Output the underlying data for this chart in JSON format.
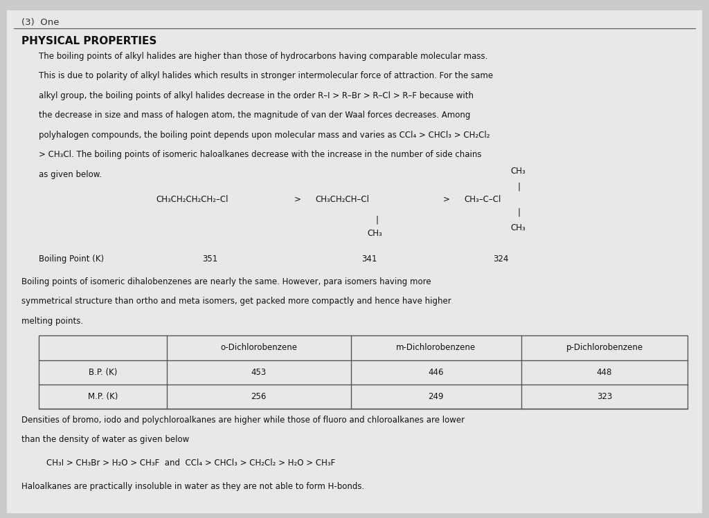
{
  "background_color": "#d8d8d8",
  "page_bg": "#e8e8e8",
  "title": "PHYSICAL PROPERTIES",
  "para1": "The boiling points of alkyl halides are higher than those of hydrocarbons having comparable molecular mass.\nThis is due to polarity of alkyl halides which results in stronger intermolecular force of attraction. For the same\nalkyl group, the boiling points of alkyl halides decrease in the order R–I > R–Br > R–Cl > R–F because with\nthe decrease in size and mass of halogen atom, the magnitude of van der Waal forces decreases. Among\npolyhalogen compounds, the boiling point depends upon molecular mass and varies as CCl₄ > CHCl₃ > CH₂Cl₂\n> CH₃Cl. The boiling points of isomeric haloalkanes decrease with the increase in the number of side chains\nas given below.",
  "header_num": "(3)  One",
  "table_headers": [
    "",
    "o-Dichlorobenzene",
    "m-Dichlorobenzene",
    "p-Dichlorobenzene"
  ],
  "table_row1": [
    "B.P. (K)",
    "453",
    "446",
    "448"
  ],
  "table_row2": [
    "M.P. (K)",
    "256",
    "249",
    "323"
  ],
  "para2": "Boiling points of isomeric dihalobenzenes are nearly the same. However, para isomers having more\nsymmetrical structure than ortho and meta isomers, get packed more compactly and hence have higher\nmelting points.",
  "para3": "Densities of bromo, iodo and polychloroalkanes are higher while those of fluoro and chloroalkanes are lower\nthan the density of water as given below",
  "density_line": "CH₃I > CH₃Br > H₂O > CH₃F  and  CCl₄ > CHCl₃ > CH₂Cl₂ > H₂O > CH₃F",
  "last_line": "Haloalkanes are practically insoluble in water as they are not able to form H-bonds.",
  "bp_label": "Boiling Point (K)",
  "bp_values": [
    "351",
    "341",
    "324"
  ],
  "struct1_main": "CH₃CH₂CH₂CH₂–Cl",
  "struct2_main": "CH₃CH₂CH–Cl",
  "struct2_sub": "CH₃",
  "struct3_main": "CH₃–C–Cl",
  "struct3_top": "CH₃",
  "struct3_bot": "CH₃",
  "gt_symbol": ">"
}
